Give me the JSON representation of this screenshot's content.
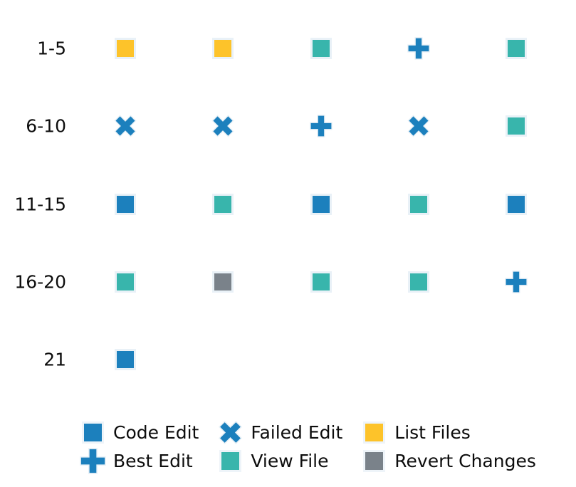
{
  "chart_data": {
    "type": "scatter",
    "title": "",
    "xlabel": "",
    "ylabel": "",
    "grid": false,
    "row_axis_labels": [
      "1-5",
      "6-10",
      "11-15",
      "16-20",
      "21"
    ],
    "columns_per_row": 5,
    "rows": [
      {
        "label": "1-5",
        "cells": [
          "list_files",
          "list_files",
          "view_file",
          "best_edit",
          "view_file"
        ]
      },
      {
        "label": "6-10",
        "cells": [
          "failed_edit",
          "failed_edit",
          "best_edit",
          "failed_edit",
          "view_file"
        ]
      },
      {
        "label": "11-15",
        "cells": [
          "code_edit",
          "view_file",
          "code_edit",
          "view_file",
          "code_edit"
        ]
      },
      {
        "label": "16-20",
        "cells": [
          "view_file",
          "revert_changes",
          "view_file",
          "view_file",
          "best_edit"
        ]
      },
      {
        "label": "21",
        "cells": [
          "code_edit",
          null,
          null,
          null,
          null
        ]
      }
    ],
    "marker_types": {
      "code_edit": {
        "label": "Code Edit",
        "shape": "square",
        "color": "#1c80bd"
      },
      "failed_edit": {
        "label": "Failed Edit",
        "shape": "x",
        "color": "#1c80bd"
      },
      "list_files": {
        "label": "List Files",
        "shape": "square",
        "color": "#fdc32a"
      },
      "best_edit": {
        "label": "Best Edit",
        "shape": "plus",
        "color": "#1c80bd"
      },
      "view_file": {
        "label": "View File",
        "shape": "square",
        "color": "#38b5ac"
      },
      "revert_changes": {
        "label": "Revert Changes",
        "shape": "square",
        "color": "#7a828a"
      }
    },
    "legend": {
      "position": "bottom",
      "rows": [
        [
          "code_edit",
          "failed_edit",
          "list_files"
        ],
        [
          "best_edit",
          "view_file",
          "revert_changes"
        ]
      ]
    },
    "colors": {
      "background": "#ffffff",
      "text": "#0d0d0d",
      "marker_edge": "#e9f1f7"
    }
  }
}
